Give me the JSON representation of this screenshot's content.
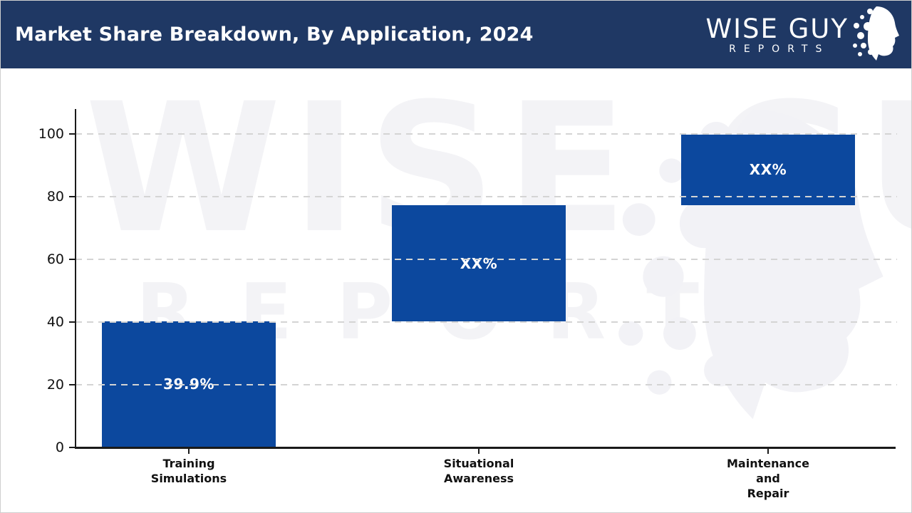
{
  "header": {
    "title": "Market Share Breakdown, By Application, 2024",
    "logo_line1": "WISE GUY",
    "logo_line2": "REPORTS"
  },
  "watermark": {
    "line1": "WISE GUY",
    "line2": "REPORTS"
  },
  "colors": {
    "header_bg": "#1f3864",
    "bar": "#0c489e",
    "grid": "#d4d4d4",
    "axis": "#1a1a1a",
    "bar_label_text": "#ffffff"
  },
  "chart_data": {
    "type": "bar",
    "subtype": "stacked-waterfall",
    "title": "Market Share Breakdown, By Application, 2024",
    "categories": [
      "Training Simulations",
      "Situational Awareness",
      "Maintenance and Repair"
    ],
    "series": [
      {
        "name": "Market Share (%)",
        "segments": [
          {
            "category": "Training Simulations",
            "label": "39.9%",
            "start": 0,
            "end": 39.9
          },
          {
            "category": "Situational Awareness",
            "label": "XX%",
            "start": 39.9,
            "end": 77.1
          },
          {
            "category": "Maintenance and Repair",
            "label": "XX%",
            "start": 77.1,
            "end": 99.5
          }
        ]
      }
    ],
    "y_ticks": [
      0,
      20,
      40,
      60,
      80,
      100
    ],
    "ylim": [
      0,
      107
    ],
    "xlabel": "",
    "ylabel": "",
    "grid": "horizontal-dashed",
    "legend": "none"
  }
}
